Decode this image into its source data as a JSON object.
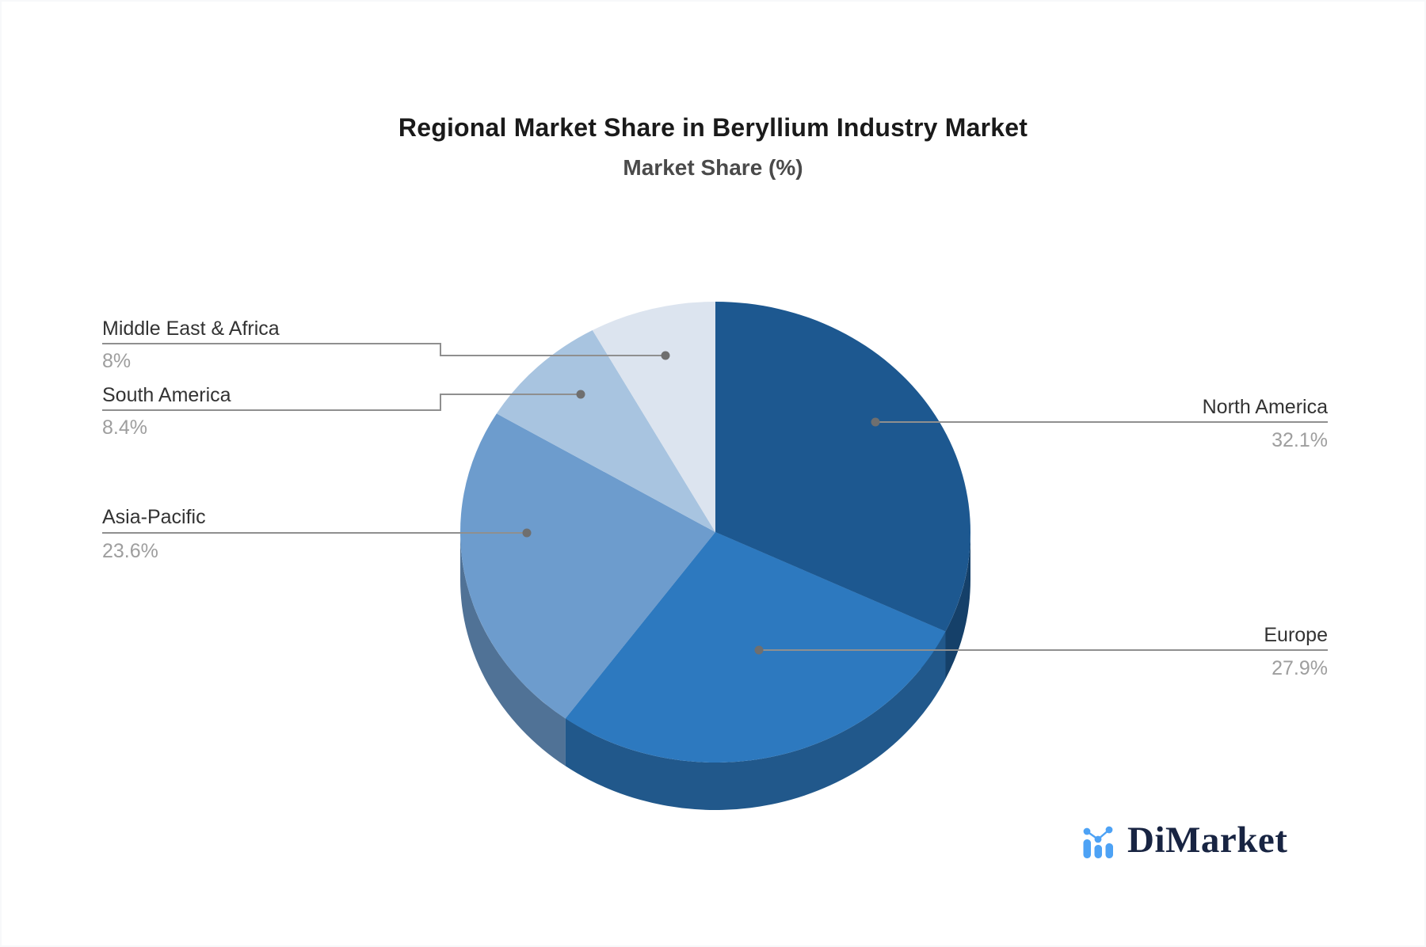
{
  "title": "Regional Market Share in Beryllium Industry Market",
  "subtitle": "Market Share (%)",
  "logo": {
    "text": "DiMarket"
  },
  "chart_data": {
    "type": "pie",
    "title": "Regional Market Share in Beryllium Industry Market",
    "subtitle": "Market Share (%)",
    "unit": "%",
    "three_d": true,
    "direction": "clockwise",
    "start_angle_deg": 0,
    "legend_position": "callout-labels",
    "slices": [
      {
        "label": "North America",
        "value": 32.1,
        "display": "32.1%",
        "color": "#1d5890"
      },
      {
        "label": "Europe",
        "value": 27.9,
        "display": "27.9%",
        "color": "#2d79bf"
      },
      {
        "label": "Asia-Pacific",
        "value": 23.6,
        "display": "23.6%",
        "color": "#6d9ccd"
      },
      {
        "label": "South America",
        "value": 8.4,
        "display": "8.4%",
        "color": "#a8c4e0"
      },
      {
        "label": "Middle East & Africa",
        "value": 8,
        "display": "8%",
        "color": "#dce4ef"
      }
    ]
  },
  "colors": {
    "callout_line": "#8f8f8f",
    "callout_dot": "#6f6f6f",
    "label_text": "#333333",
    "value_text": "#9e9e9e",
    "title_text": "#1a1a1a",
    "subtitle_text": "#4a4a4a",
    "logo_text": "#182442",
    "logo_icon": "#4da2f5"
  }
}
